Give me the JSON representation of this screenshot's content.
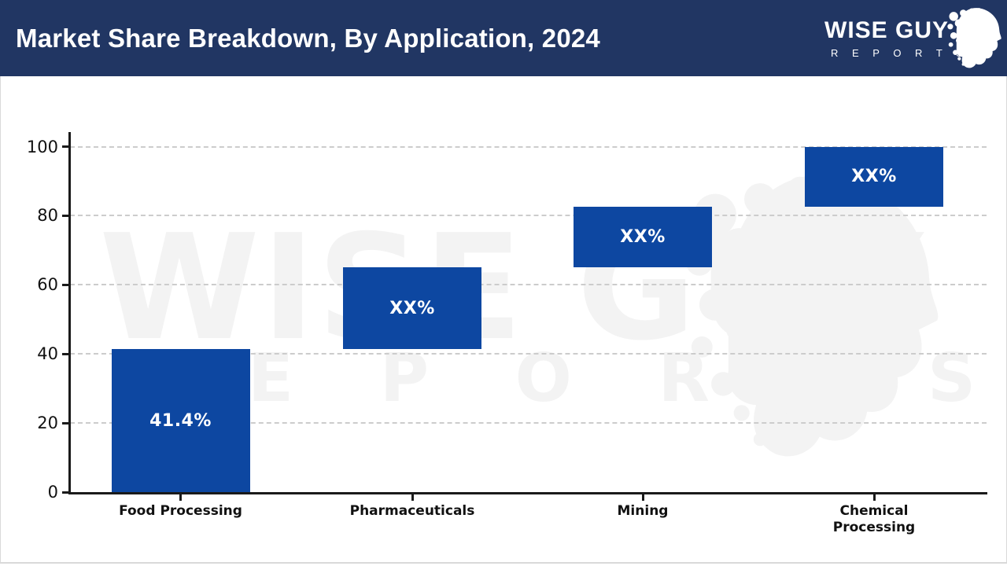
{
  "header": {
    "title": "Market Share Breakdown, By Application, 2024",
    "logo": {
      "line1": "WISE GUY",
      "line2": "R E P O R T S"
    }
  },
  "watermark": {
    "line1": "WISE GUY",
    "line2": "R E P O R T S"
  },
  "colors": {
    "header_bg": "#213663",
    "bar": "#0d47a1",
    "grid": "#cccccc",
    "axis": "#1a1a1a",
    "watermark": "#f3f3f3",
    "value_label": "#ffffff"
  },
  "chart_data": {
    "type": "bar",
    "subtype": "waterfall-floating-bars",
    "title": "Market Share Breakdown, By Application, 2024",
    "xlabel": "",
    "ylabel": "",
    "categories": [
      "Food Processing",
      "Pharmaceuticals",
      "Mining",
      "Chemical Processing"
    ],
    "segments": [
      {
        "category": "Food Processing",
        "start": 0,
        "end": 41.4,
        "label": "41.4%"
      },
      {
        "category": "Pharmaceuticals",
        "start": 41.4,
        "end": 65,
        "label": "XX%"
      },
      {
        "category": "Mining",
        "start": 65,
        "end": 82.6,
        "label": "XX%"
      },
      {
        "category": "Chemical Processing",
        "start": 82.6,
        "end": 100,
        "label": "XX%"
      }
    ],
    "yticks": [
      0,
      20,
      40,
      60,
      80,
      100
    ],
    "ylim": [
      0,
      100
    ],
    "grid": "horizontal-dashed",
    "legend": "none",
    "bar_color": "#0d47a1",
    "value_label_color": "#ffffff"
  }
}
